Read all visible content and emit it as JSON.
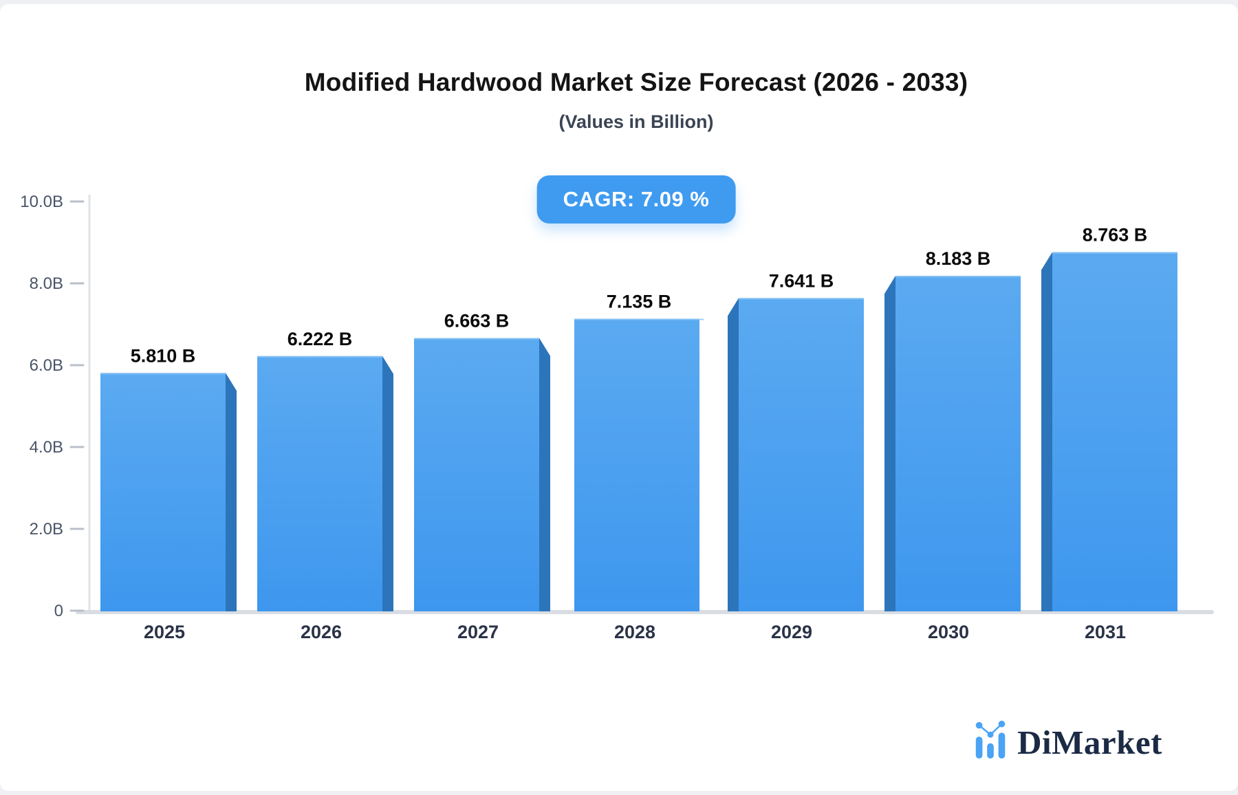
{
  "header": {
    "title": "Modified Hardwood Market Size Forecast (2026 - 2033)",
    "subtitle": "(Values in Billion)",
    "cagr_label": "CAGR: 7.09 %"
  },
  "chart_data": {
    "type": "bar",
    "categories": [
      "2025",
      "2026",
      "2027",
      "2028",
      "2029",
      "2030",
      "2031"
    ],
    "values": [
      5.81,
      6.222,
      6.663,
      7.135,
      7.641,
      8.183,
      8.763
    ],
    "value_labels": [
      "5.810 B",
      "6.222 B",
      "6.663 B",
      "7.135 B",
      "7.641 B",
      "8.183 B",
      "8.763 B"
    ],
    "title": "Modified Hardwood Market Size Forecast (2026 - 2033)",
    "subtitle": "(Values in Billion)",
    "cagr": "7.09 %",
    "unit": "Billion",
    "xlabel": "",
    "ylabel": "",
    "ylim": [
      0,
      10
    ],
    "y_ticks": [
      0,
      2,
      4,
      6,
      8,
      10
    ],
    "y_tick_labels": [
      "0",
      "2.0B",
      "4.0B",
      "6.0B",
      "8.0B",
      "10.0B"
    ],
    "grid": false,
    "legend": false,
    "style": "pseudo-3d bars, perspective toward center bar",
    "colors": {
      "bar_face_top": "#5BAAF1",
      "bar_face_bottom": "#3E97EE",
      "bar_face_highlight": "#8CC4F5",
      "bar_side": "#2C75BB",
      "axis_line": "#DFE3E8",
      "baseline": "#D9DDE3",
      "tick_dash": "#B9C0CA",
      "tick_text": "#495468",
      "category_text": "#2B3347",
      "value_text": "#0A0A0A",
      "badge_bg": "#3F9BF0"
    }
  },
  "footer": {
    "brand": "DiMarket"
  }
}
